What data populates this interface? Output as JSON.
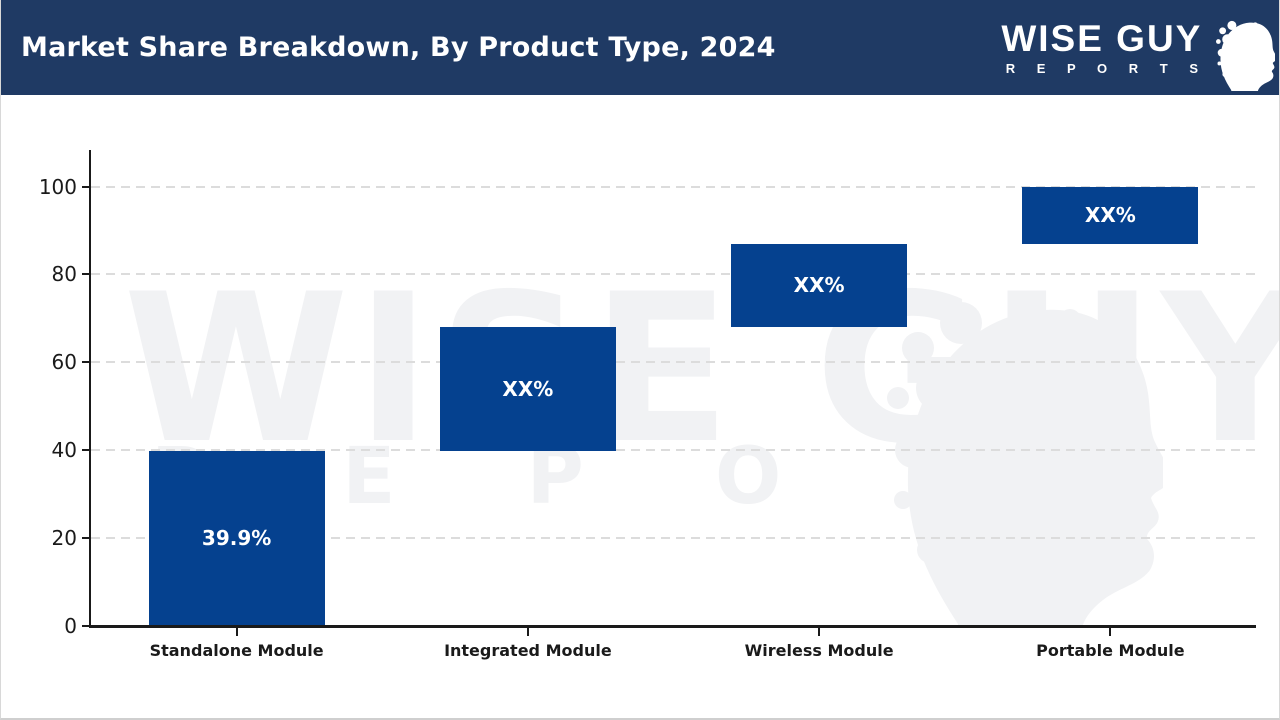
{
  "header": {
    "title": "Market Share Breakdown, By Product Type, 2024",
    "logo": {
      "line1": "WISE GUY",
      "line2": "REPORTS"
    }
  },
  "watermark": {
    "line1": "WISE GUY",
    "line2": "REPORTS"
  },
  "colors": {
    "header_bg": "#1f3a64",
    "bar_blue": "#05418f",
    "axis": "#1a1a1a",
    "grid": "#dcdcdc",
    "watermark_gray": "#f1f2f4",
    "title_text": "#ffffff",
    "bar_label_text": "#ffffff"
  },
  "chart_data": {
    "type": "bar",
    "subtype": "stacked-waterfall",
    "title": "",
    "xlabel": "",
    "ylabel": "",
    "categories": [
      "Standalone Module",
      "Integrated Module",
      "Wireless Module",
      "Portable Module"
    ],
    "segments": [
      {
        "category": "Standalone Module",
        "start": 0,
        "end": 39.9,
        "label": "39.9%"
      },
      {
        "category": "Integrated Module",
        "start": 39.9,
        "end": 68,
        "label": "XX%"
      },
      {
        "category": "Wireless Module",
        "start": 68,
        "end": 87,
        "label": "XX%"
      },
      {
        "category": "Portable Module",
        "start": 87,
        "end": 100,
        "label": "XX%"
      }
    ],
    "yticks": [
      0,
      20,
      40,
      60,
      80,
      100
    ],
    "ylim": [
      0,
      108
    ],
    "grid": "dashed-horizontal",
    "legend": false
  }
}
